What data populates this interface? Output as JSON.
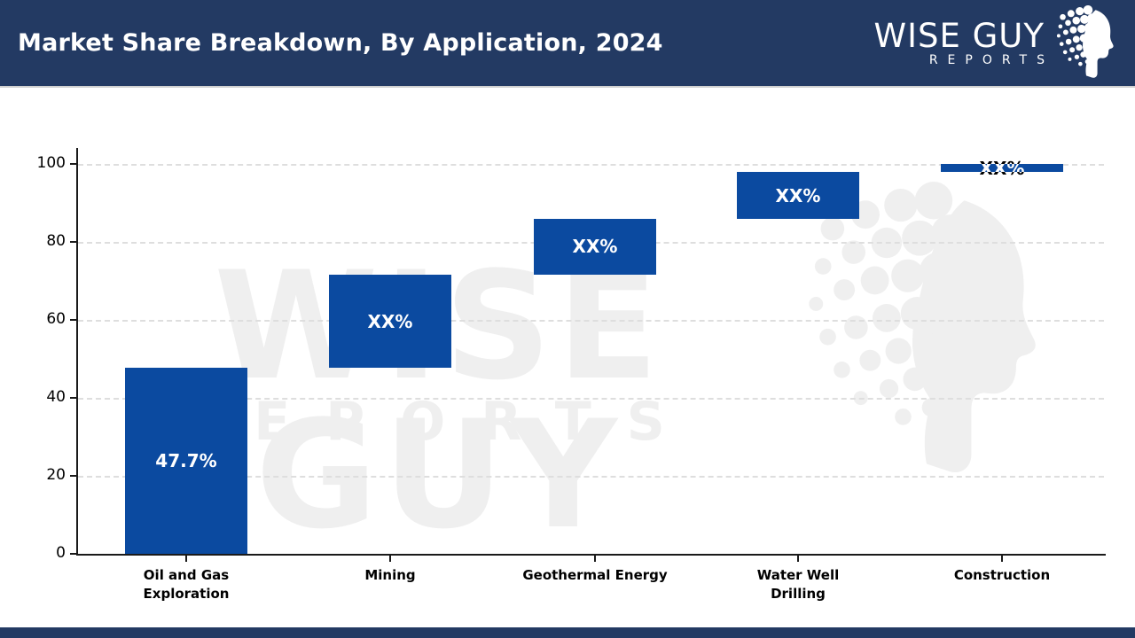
{
  "header": {
    "title": "Market Share Breakdown, By Application, 2024",
    "brand": {
      "line1": "WISE GUY",
      "line2": "REPORTS"
    }
  },
  "watermark": {
    "line1": "WISE GUY",
    "line2": "REPORTS"
  },
  "colors": {
    "header_navy": "#233a63",
    "bar_blue": "#0b4aa0",
    "gridline_gray": "#dedede",
    "watermark_gray": "#efefef",
    "axis_black": "#1a1a1a"
  },
  "chart_data": {
    "type": "bar",
    "subtype": "floating-waterfall",
    "title": "Market Share Breakdown, By Application, 2024",
    "categories": [
      "Oil and Gas\nExploration",
      "Mining",
      "Geothermal Energy",
      "Water Well\nDrilling",
      "Construction"
    ],
    "segments": [
      {
        "category": "Oil and Gas Exploration",
        "start": 0,
        "end": 47.7,
        "label": "47.7%"
      },
      {
        "category": "Mining",
        "start": 47.7,
        "end": 71.6,
        "label": "XX%"
      },
      {
        "category": "Geothermal Energy",
        "start": 71.6,
        "end": 85.9,
        "label": "XX%"
      },
      {
        "category": "Water Well Drilling",
        "start": 85.9,
        "end": 97.9,
        "label": "XX%"
      },
      {
        "category": "Construction",
        "start": 97.9,
        "end": 100,
        "label": "XX%"
      }
    ],
    "y_ticks": [
      0,
      20,
      40,
      60,
      80,
      100
    ],
    "ylim": [
      0,
      103
    ],
    "grid": {
      "horizontal": true,
      "style": "dashed"
    },
    "legend": "none",
    "bar_color": "#0b4aa0",
    "bar_label_color_inside": "#ffffff",
    "bar_label_color_outside": "#000000"
  },
  "footer": {
    "background_color": "#233a63"
  }
}
